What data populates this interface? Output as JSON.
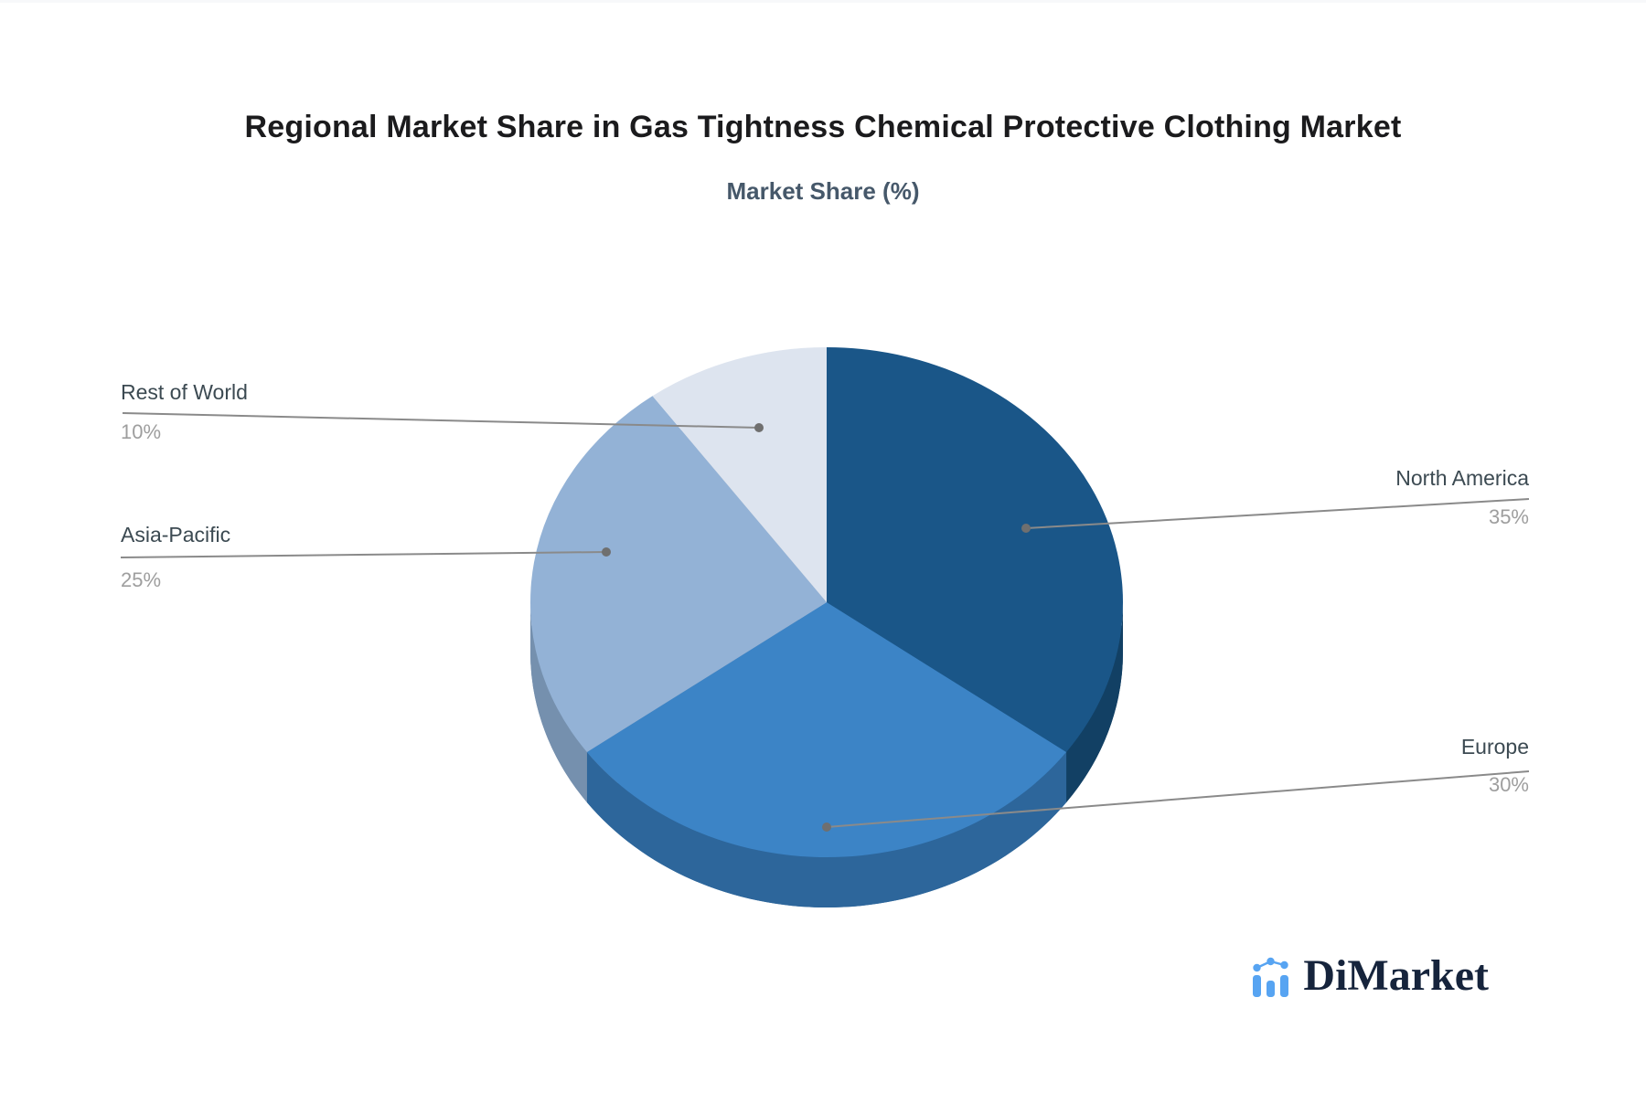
{
  "chart_data": {
    "type": "pie",
    "style": "3d",
    "title": "Regional Market Share in Gas Tightness Chemical Protective Clothing Market",
    "subtitle": "Market Share (%)",
    "unit": "%",
    "start_angle": "12 o'clock",
    "direction": "clockwise",
    "legend_position": "callout-labels",
    "slices": [
      {
        "label": "North America",
        "value": 35,
        "display": "35%",
        "color": "#1a5688",
        "side_color": "#124064"
      },
      {
        "label": "Europe",
        "value": 30,
        "display": "30%",
        "color": "#3c84c6",
        "side_color": "#2d669b"
      },
      {
        "label": "Asia-Pacific",
        "value": 25,
        "display": "25%",
        "color": "#93b2d6",
        "side_color": "#7590ae"
      },
      {
        "label": "Rest of World",
        "value": 10,
        "display": "10%",
        "color": "#dde4ef",
        "side_color": "#b6c0ce"
      }
    ]
  },
  "colors": {
    "title": "#1b1b1d",
    "subtitle": "#46586a",
    "label": "#3c4a52",
    "percent": "#9e9e9e",
    "leader": "#8a8a8a",
    "dot": "#6f6f6f",
    "logo": "#16243c",
    "logo_icon": "#57a4f2"
  },
  "branding": {
    "logo_text": "DiMarket"
  }
}
